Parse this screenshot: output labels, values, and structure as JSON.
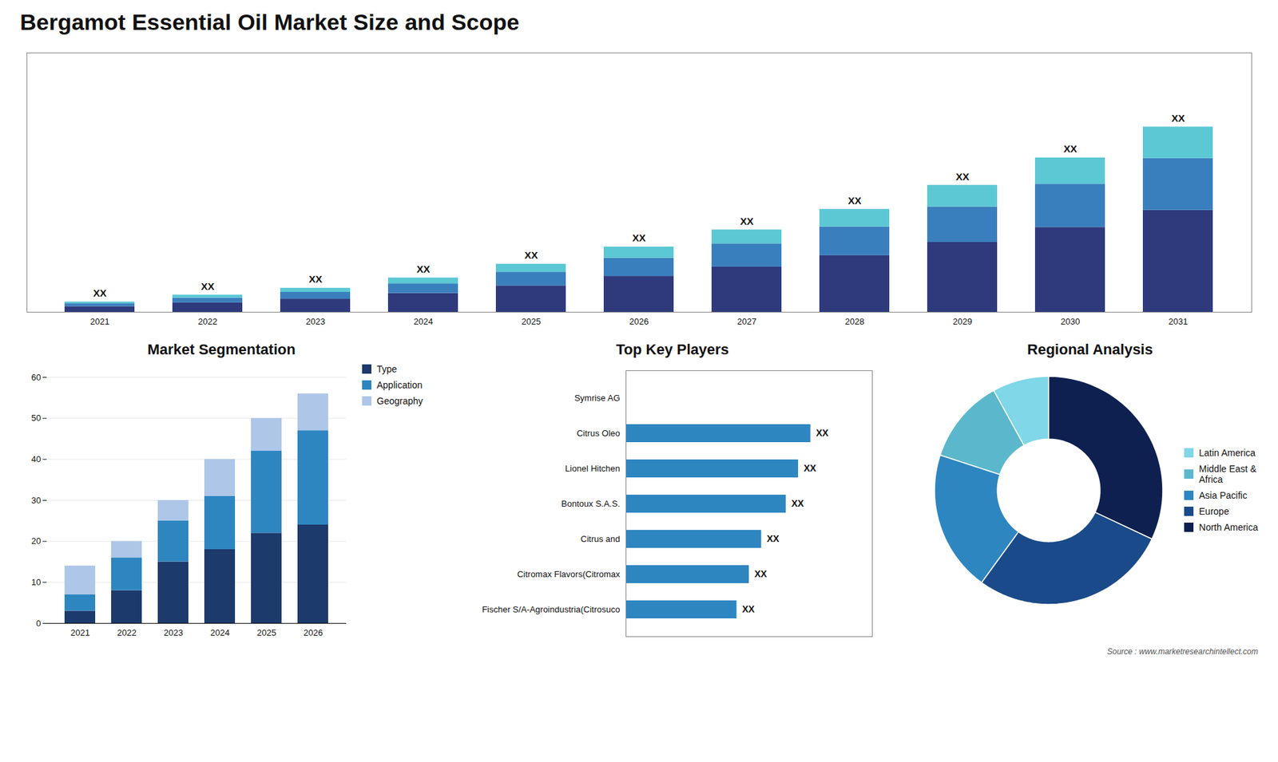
{
  "chart_data": [
    {
      "type": "bar",
      "title": "Bergamot Essential Oil Market Size and Scope",
      "stacked": true,
      "categories": [
        "2021",
        "2022",
        "2023",
        "2024",
        "2025",
        "2026",
        "2027",
        "2028",
        "2029",
        "2030",
        "2031"
      ],
      "series": [
        {
          "color": "#2e3a7c",
          "values": [
            1.65,
            2.75,
            3.85,
            5.5,
            7.7,
            10.45,
            13.2,
            16.5,
            20.35,
            24.75,
            29.7
          ]
        },
        {
          "color": "#3a7fbd",
          "values": [
            0.84,
            1.4,
            1.96,
            2.8,
            3.92,
            5.32,
            6.72,
            8.4,
            10.36,
            12.6,
            15.12
          ]
        },
        {
          "color": "#5bc8d4",
          "values": [
            0.51,
            0.85,
            1.19,
            1.7,
            2.38,
            3.23,
            4.08,
            5.1,
            6.29,
            7.65,
            9.18
          ]
        }
      ],
      "value_labels": [
        "XX",
        "XX",
        "XX",
        "XX",
        "XX",
        "XX",
        "XX",
        "XX",
        "XX",
        "XX",
        "XX"
      ],
      "ylim": [
        0,
        75.6
      ],
      "tick_labels": "x",
      "grid": false
    },
    {
      "type": "bar",
      "title": "Market Segmentation",
      "stacked": true,
      "categories": [
        "2021",
        "2022",
        "2023",
        "2024",
        "2025",
        "2026"
      ],
      "series": [
        {
          "name": "Type",
          "color": "#1c3a6b",
          "values": [
            3,
            8,
            15,
            18,
            22,
            24
          ]
        },
        {
          "name": "Application",
          "color": "#2e86c1",
          "values": [
            4,
            8,
            10,
            13,
            20,
            23
          ]
        },
        {
          "name": "Geography",
          "color": "#aec6e8",
          "values": [
            7,
            4,
            5,
            9,
            8,
            9
          ]
        }
      ],
      "ylim": [
        0,
        60
      ],
      "yticks": [
        0,
        10,
        20,
        30,
        40,
        50,
        60
      ],
      "grid": true,
      "legend": "right"
    },
    {
      "type": "bar",
      "title": "Top Key Players",
      "orientation": "horizontal",
      "categories": [
        "Symrise AG",
        "Citrus Oleo",
        "Lionel Hitchen",
        "Bontoux S.A.S.",
        "Citrus and",
        "Citromax Flavors(Citromax",
        "Fischer S/A-Agroindustria(Citrosuco"
      ],
      "values": [
        0,
        75,
        70,
        65,
        55,
        50,
        45
      ],
      "value_labels": [
        null,
        "XX",
        "XX",
        "XX",
        "XX",
        "XX",
        "XX"
      ],
      "color": "#2e86c1",
      "xlim": [
        0,
        100
      ],
      "tick_labels": "y",
      "grid": false
    },
    {
      "type": "donut",
      "title": "Regional Analysis",
      "categories": [
        "Latin America",
        "Middle East &\nAfrica",
        "Asia Pacific",
        "Europe",
        "North America"
      ],
      "values": [
        8,
        12,
        20,
        28,
        32
      ],
      "colors": [
        "#7fd7e8",
        "#5bb8cc",
        "#2e86c1",
        "#1a4a8a",
        "#0d2050"
      ],
      "legend": "right",
      "annotations": [
        "Source : www.marketresearchintellect.com"
      ]
    }
  ]
}
